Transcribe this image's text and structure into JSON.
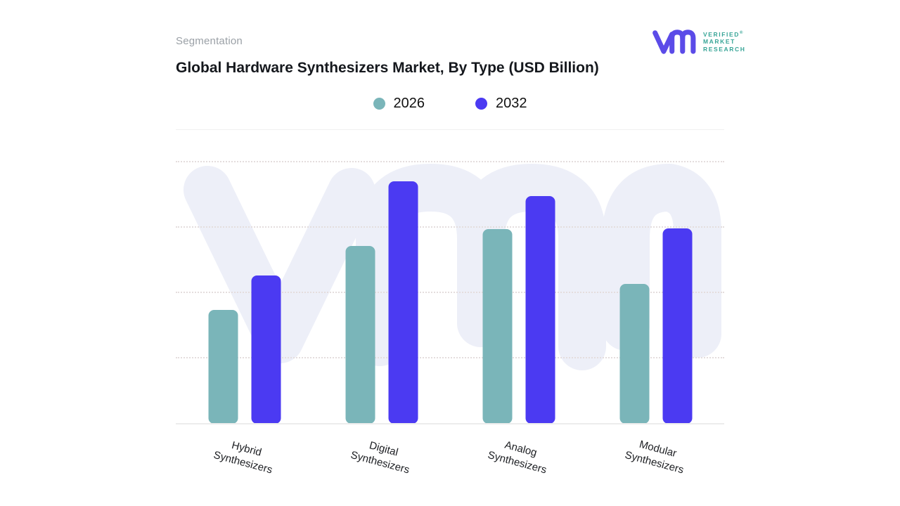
{
  "header": {
    "eyebrow": "Segmentation",
    "title": "Global Hardware Synthesizers Market, By Type (USD Billion)"
  },
  "brand": {
    "glyph": "vm-monogram",
    "glyph_color": "#5b4be8",
    "text_color": "#38a597",
    "line1": "VERIFIED",
    "registered_mark": "®",
    "line2": "MARKET",
    "line3": "RESEARCH"
  },
  "chart_data": {
    "type": "bar",
    "title": "Global Hardware Synthesizers Market, By Type (USD Billion)",
    "categories": [
      "Hybrid Synthesizers",
      "Digital Synthesizers",
      "Analog Synthesizers",
      "Modular Synthesizers"
    ],
    "series": [
      {
        "name": "2026",
        "color": "#7ab5b9",
        "values": [
          1.74,
          2.72,
          2.98,
          2.14
        ]
      },
      {
        "name": "2032",
        "color": "#4b3af2",
        "values": [
          2.27,
          3.71,
          3.48,
          2.99
        ]
      }
    ],
    "xlabel": "",
    "ylabel": "",
    "ylim": [
      0,
      4.06
    ],
    "gridline_step": 1,
    "y_tick_labels_visible": false,
    "values_note": "no y-axis tick labels shown; values estimated in dashed-gridline units from bar heights",
    "grid": "horizontal dashed",
    "legend_position": "top-center",
    "watermark": "light vm monogram behind bars",
    "colors": {
      "gridline": "#e4dddd",
      "baseline": "#ececec",
      "watermark": "#edeff8"
    }
  }
}
